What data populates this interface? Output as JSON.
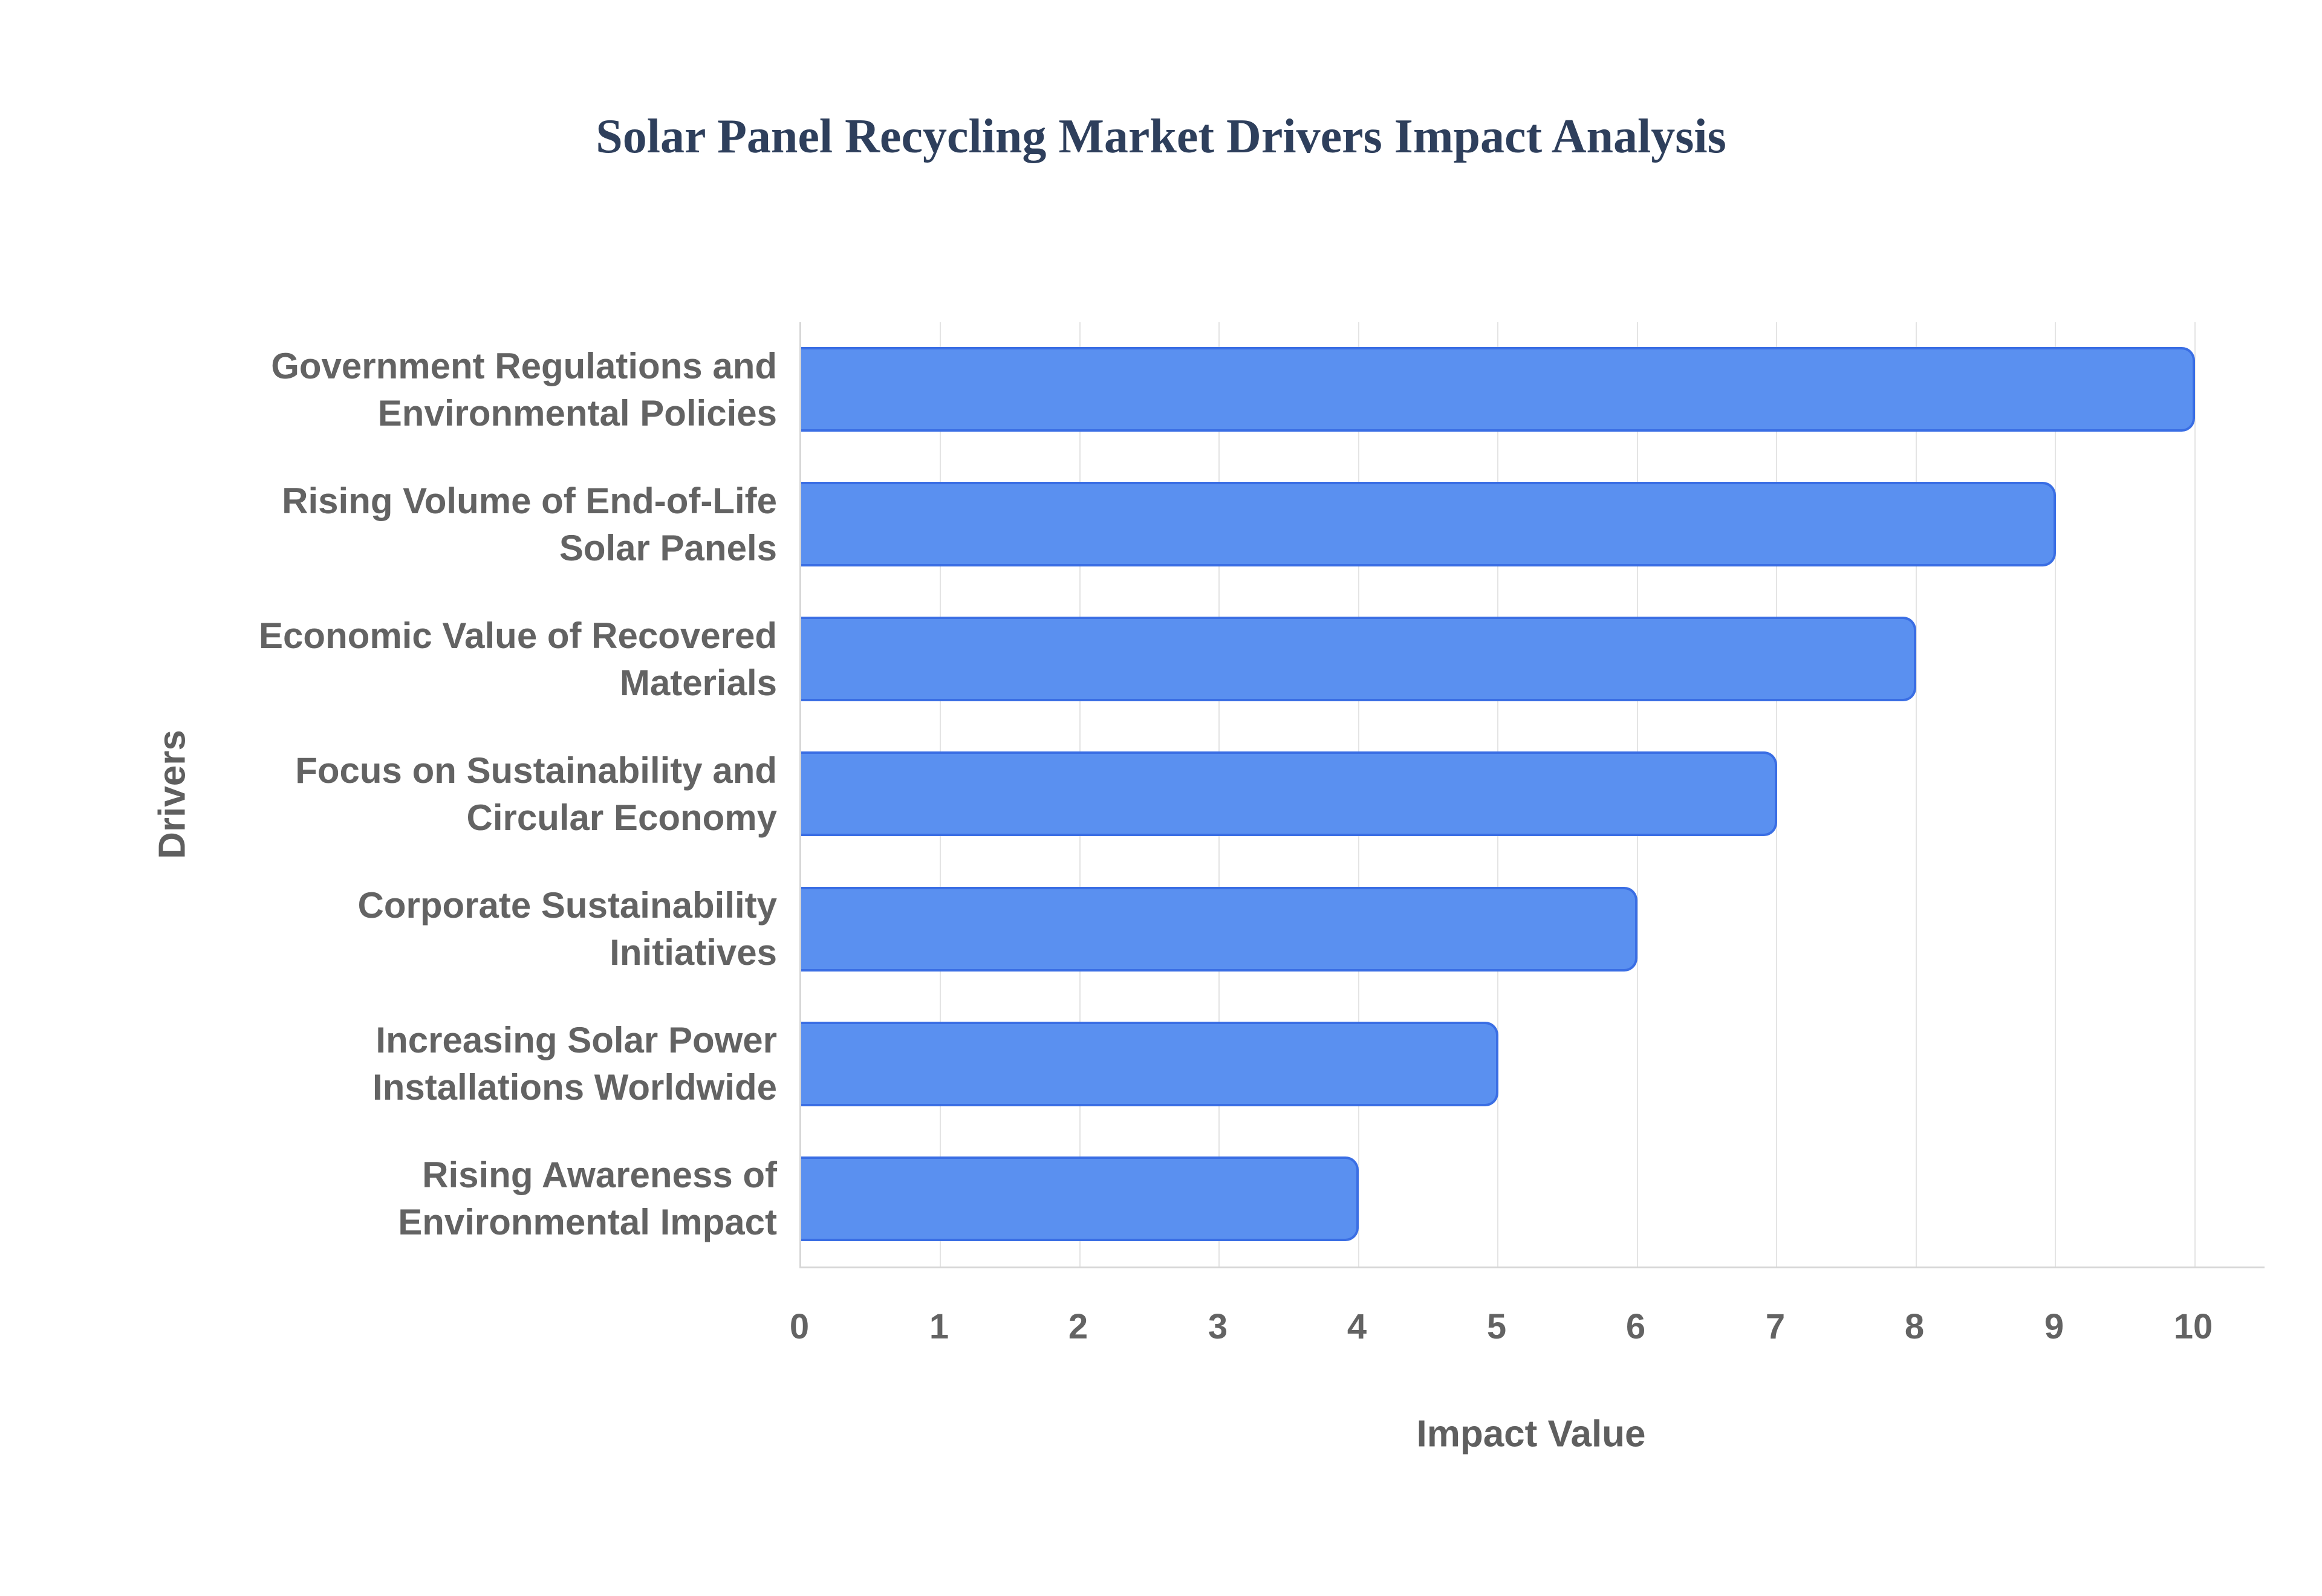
{
  "title": "Solar Panel Recycling Market Drivers Impact Analysis",
  "chart_data": {
    "type": "bar",
    "orientation": "horizontal",
    "title": "Solar Panel Recycling Market Drivers Impact Analysis",
    "xlabel": "Impact Value",
    "ylabel": "Drivers",
    "categories": [
      "Government Regulations and Environmental Policies",
      "Rising Volume of End-of-Life Solar Panels",
      "Economic Value of Recovered Materials",
      "Focus on Sustainability and Circular Economy",
      "Corporate Sustainability Initiatives",
      "Increasing Solar Power Installations Worldwide",
      "Rising Awareness of Environmental Impact"
    ],
    "categories_lines": [
      [
        "Government Regulations and",
        "Environmental Policies"
      ],
      [
        "Rising Volume of End-of-Life",
        "Solar Panels"
      ],
      [
        "Economic Value of Recovered",
        "Materials"
      ],
      [
        "Focus on Sustainability and",
        "Circular Economy"
      ],
      [
        "Corporate Sustainability",
        "Initiatives"
      ],
      [
        "Increasing Solar Power",
        "Installations Worldwide"
      ],
      [
        "Rising Awareness of",
        "Environmental Impact"
      ]
    ],
    "values": [
      10,
      9,
      8,
      7,
      6,
      5,
      4
    ],
    "xticks": [
      0,
      1,
      2,
      3,
      4,
      5,
      6,
      7,
      8,
      9,
      10
    ],
    "xtick_labels": [
      "0",
      "1",
      "2",
      "3",
      "4",
      "5",
      "6",
      "7",
      "8",
      "9",
      "10"
    ],
    "xlim": [
      0,
      10.5
    ],
    "grid": "vertical",
    "legend": "none",
    "colors": {
      "bar_fill": "#5a90f0",
      "bar_border": "#3a6ee4",
      "gridline": "#e4e4e4",
      "axis_line": "#d6d6d6",
      "tick_text": "#636363",
      "axis_title_text": "#5f5f5f",
      "title_text": "#2e3f5c"
    }
  }
}
